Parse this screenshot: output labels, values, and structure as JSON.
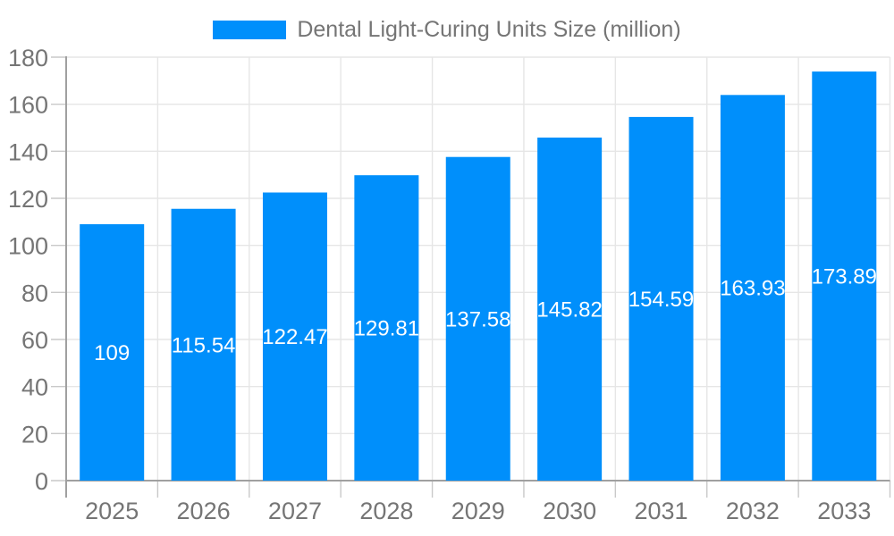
{
  "colors": {
    "bar": "#008FFB",
    "axis_text": "#757575",
    "data_label": "#FFFFFF",
    "grid": "#E6E6E6",
    "axis_line": "#A0A0A0",
    "tick": "#C9C9C9",
    "background": "#FFFFFF"
  },
  "chart_data": {
    "type": "bar",
    "categories": [
      "2025",
      "2026",
      "2027",
      "2028",
      "2029",
      "2030",
      "2031",
      "2032",
      "2033"
    ],
    "values": [
      109,
      115.54,
      122.47,
      129.81,
      137.58,
      145.82,
      154.59,
      163.93,
      173.89
    ],
    "value_labels": [
      "109",
      "115.54",
      "122.47",
      "129.81",
      "137.58",
      "145.82",
      "154.59",
      "163.93",
      "173.89"
    ],
    "title": "",
    "xlabel": "",
    "ylabel": "",
    "ylim": [
      0,
      180
    ],
    "yticks": [
      0,
      20,
      40,
      60,
      80,
      100,
      120,
      140,
      160,
      180
    ],
    "ytick_labels": [
      "0",
      "20",
      "40",
      "60",
      "80",
      "100",
      "120",
      "140",
      "160",
      "180"
    ],
    "grid": true,
    "data_labels_position": "inside-center",
    "legend": {
      "position": "top",
      "label": "Dental Light-Curing Units Size (million)"
    }
  }
}
